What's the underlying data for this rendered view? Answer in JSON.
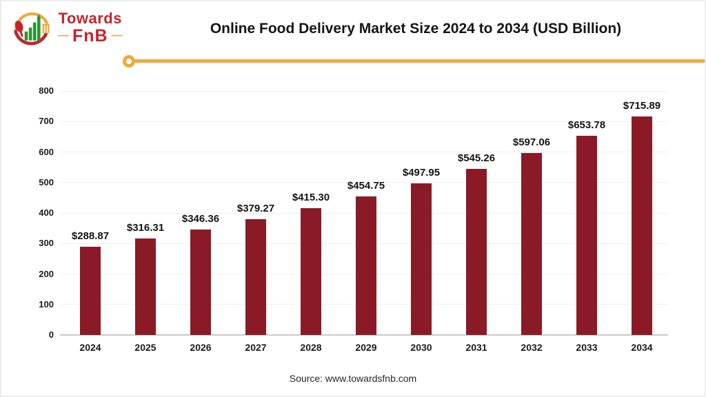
{
  "header": {
    "title": "Online Food Delivery Market Size 2024 to 2034 (USD Billion)",
    "logo": {
      "brand_top": "Towards",
      "brand_bottom": "FnB",
      "dash": "—"
    }
  },
  "footer": {
    "source": "Source: www.towardsfnb.com"
  },
  "colors": {
    "bar": "#8A1B26",
    "accent_yellow": "#F0A93C",
    "logo_red": "#C3242B",
    "logo_green": "#2E9630",
    "grid": "#f0f0f0",
    "axis_line": "#c9c9c9",
    "text": "#141414"
  },
  "chart_data": {
    "type": "bar",
    "title": "Online Food Delivery Market Size 2024 to 2034 (USD Billion)",
    "categories": [
      "2024",
      "2025",
      "2026",
      "2027",
      "2028",
      "2029",
      "2030",
      "2031",
      "2032",
      "2033",
      "2034"
    ],
    "values": [
      288.87,
      316.31,
      346.36,
      379.27,
      415.3,
      454.75,
      497.95,
      545.26,
      597.06,
      653.78,
      715.89
    ],
    "value_labels": [
      "$288.87",
      "$316.31",
      "$346.36",
      "$379.27",
      "$415.30",
      "$454.75",
      "$497.95",
      "$545.26",
      "$597.06",
      "$653.78",
      "$715.89"
    ],
    "xlabel": "",
    "ylabel": "",
    "ylim": [
      0,
      800
    ],
    "yticks": [
      "0",
      "100",
      "200",
      "300",
      "400",
      "500",
      "600",
      "700",
      "800"
    ],
    "grid": true,
    "legend": false,
    "bar_color": "#8A1B26"
  }
}
